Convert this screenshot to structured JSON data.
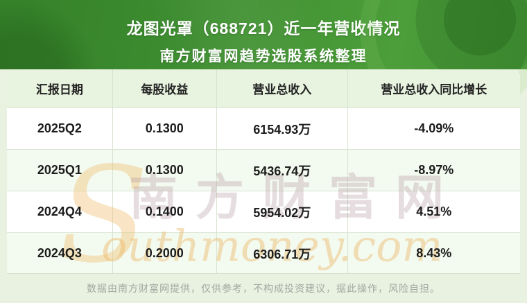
{
  "banner": {
    "title": "龙图光罩（688721）近一年营收情况",
    "subtitle": "南方财富网趋势选股系统整理"
  },
  "chart_data": {
    "type": "table",
    "title": "龙图光罩（688721）近一年营收情况",
    "subtitle": "南方财富网趋势选股系统整理",
    "columns": [
      "汇报日期",
      "每股收益",
      "营业总收入",
      "营业总收入同比增长"
    ],
    "rows": [
      [
        "2025Q2",
        "0.1300",
        "6154.93万",
        "-4.09%"
      ],
      [
        "2025Q1",
        "0.1300",
        "5436.74万",
        "-8.97%"
      ],
      [
        "2024Q4",
        "0.1400",
        "5954.02万",
        "4.51%"
      ],
      [
        "2024Q3",
        "0.2000",
        "6306.71万",
        "8.43%"
      ]
    ],
    "series": [
      {
        "name": "每股收益",
        "categories": [
          "2025Q2",
          "2025Q1",
          "2024Q4",
          "2024Q3"
        ],
        "values": [
          0.13,
          0.13,
          0.14,
          0.2
        ]
      },
      {
        "name": "营业总收入(万)",
        "categories": [
          "2025Q2",
          "2025Q1",
          "2024Q4",
          "2024Q3"
        ],
        "values": [
          6154.93,
          5436.74,
          5954.02,
          6306.71
        ]
      },
      {
        "name": "营业总收入同比增长(%)",
        "categories": [
          "2025Q2",
          "2025Q1",
          "2024Q4",
          "2024Q3"
        ],
        "values": [
          -4.09,
          -8.97,
          4.51,
          8.43
        ]
      }
    ]
  },
  "watermark": {
    "initial": "S",
    "cn": "南方财富网",
    "en": "outhmoney.com"
  },
  "footer": {
    "disclaimer": "数据由南方财富网提供，仅供参考，不构成投资建议，据此操作，风险自担。"
  },
  "colors": {
    "banner_green_dark": "#35812a",
    "banner_green_light": "#4c9e3a",
    "header_row_bg": "#e8f4e0",
    "alt_row_bg": "#f3faef",
    "page_bg": "#e9f1e1",
    "border": "#d6e2d0",
    "text": "#1c1c1c",
    "footer_text": "#a2a8a0",
    "watermark_orange": "#eeb969",
    "watermark_pink": "#b2969e"
  }
}
